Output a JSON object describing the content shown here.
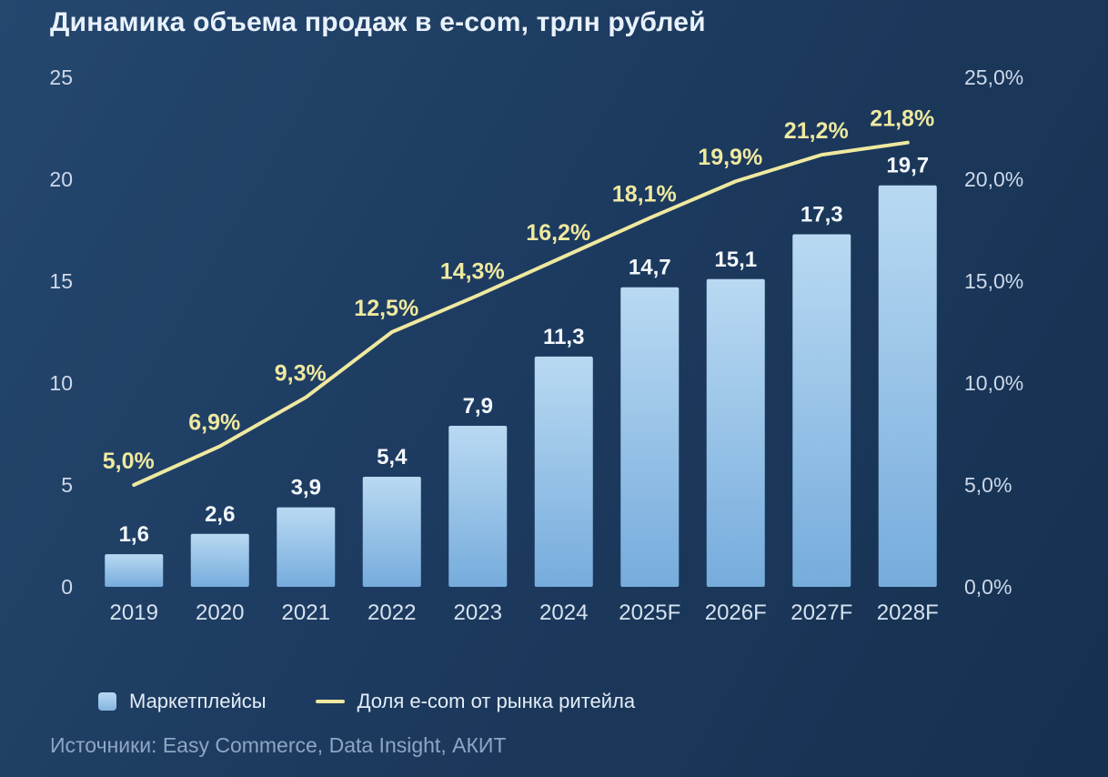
{
  "title": "Динамика объема продаж в e-com, трлн рублей",
  "source": "Источники: Easy Commerce, Data Insight, АКИТ",
  "legend": {
    "bars": "Маркетплейсы",
    "line": "Доля e-com от рынка ритейла"
  },
  "colors": {
    "background_top": "#25476e",
    "background_bottom": "#16304f",
    "bar_top": "#b9d9f2",
    "bar_bottom": "#76acdc",
    "line": "#efe9a0",
    "title_text": "#e9f2fc",
    "axis_text": "#cdd9ea",
    "bar_label_text": "#f4f8fd",
    "line_label_text": "#efe9a0",
    "source_text": "#8ea6c5"
  },
  "chart_data": {
    "type": "bar",
    "subtype": "bar+line combo",
    "title": "Динамика объема продаж в e-com, трлн рублей",
    "categories": [
      "2019",
      "2020",
      "2021",
      "2022",
      "2023",
      "2024",
      "2025F",
      "2026F",
      "2027F",
      "2028F"
    ],
    "series": [
      {
        "name": "Маркетплейсы",
        "type": "bar",
        "axis": "left",
        "values": [
          1.6,
          2.6,
          3.9,
          5.4,
          7.9,
          11.3,
          14.7,
          15.1,
          17.3,
          19.7
        ],
        "labels": [
          "1,6",
          "2,6",
          "3,9",
          "5,4",
          "7,9",
          "11,3",
          "14,7",
          "15,1",
          "17,3",
          "19,7"
        ]
      },
      {
        "name": "Доля e-com от рынка ритейла",
        "type": "line",
        "axis": "right",
        "values": [
          5.0,
          6.9,
          9.3,
          12.5,
          14.3,
          16.2,
          18.1,
          19.9,
          21.2,
          21.8
        ],
        "labels": [
          "5,0%",
          "6,9%",
          "9,3%",
          "12,5%",
          "14,3%",
          "16,2%",
          "18,1%",
          "19,9%",
          "21,2%",
          "21,8%"
        ]
      }
    ],
    "left_axis": {
      "range": [
        0,
        25
      ],
      "ticks": [
        0,
        5,
        10,
        15,
        20,
        25
      ],
      "labels": [
        "0",
        "5",
        "10",
        "15",
        "20",
        "25"
      ]
    },
    "right_axis": {
      "range": [
        0,
        25
      ],
      "ticks": [
        0,
        5,
        10,
        15,
        20,
        25
      ],
      "labels": [
        "0,0%",
        "5,0%",
        "10,0%",
        "15,0%",
        "20,0%",
        "25,0%"
      ]
    },
    "grid": false,
    "legend_position": "bottom-left"
  }
}
